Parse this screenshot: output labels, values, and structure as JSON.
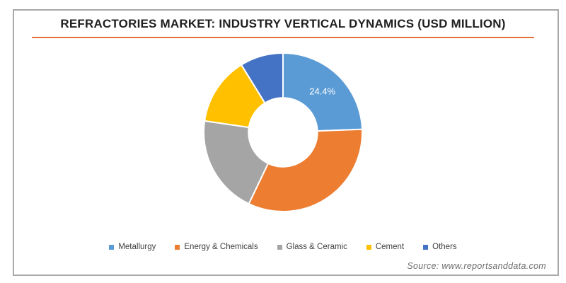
{
  "page": {
    "source": "Source: www.reportsanddata.com"
  },
  "colors": {
    "frame_border": "#a9a9a9",
    "title_text": "#1f1f1f",
    "title_underline": "#e8713a",
    "legend_text": "#404040",
    "source_text": "#6e6e6e",
    "data_label_text": "#ffffff"
  },
  "chart_data": {
    "type": "pie",
    "subtype": "donut",
    "title": "REFRACTORIES MARKET: INDUSTRY VERTICAL DYNAMICS (USD MILLION)",
    "unit": "percent share",
    "start_angle_deg": 0,
    "direction": "clockwise",
    "inner_radius_ratio": 0.435,
    "legend_position": "bottom",
    "slices": [
      {
        "label": "Metallurgy",
        "value": 24.4,
        "color": "#5b9bd5",
        "data_label": "24.4%"
      },
      {
        "label": "Energy & Chemicals",
        "value": 32.7,
        "color": "#ed7d31"
      },
      {
        "label": "Glass & Ceramic",
        "value": 20.2,
        "color": "#a5a5a5"
      },
      {
        "label": "Cement",
        "value": 13.9,
        "color": "#ffc000"
      },
      {
        "label": "Others",
        "value": 8.8,
        "color": "#4472c4"
      }
    ]
  }
}
